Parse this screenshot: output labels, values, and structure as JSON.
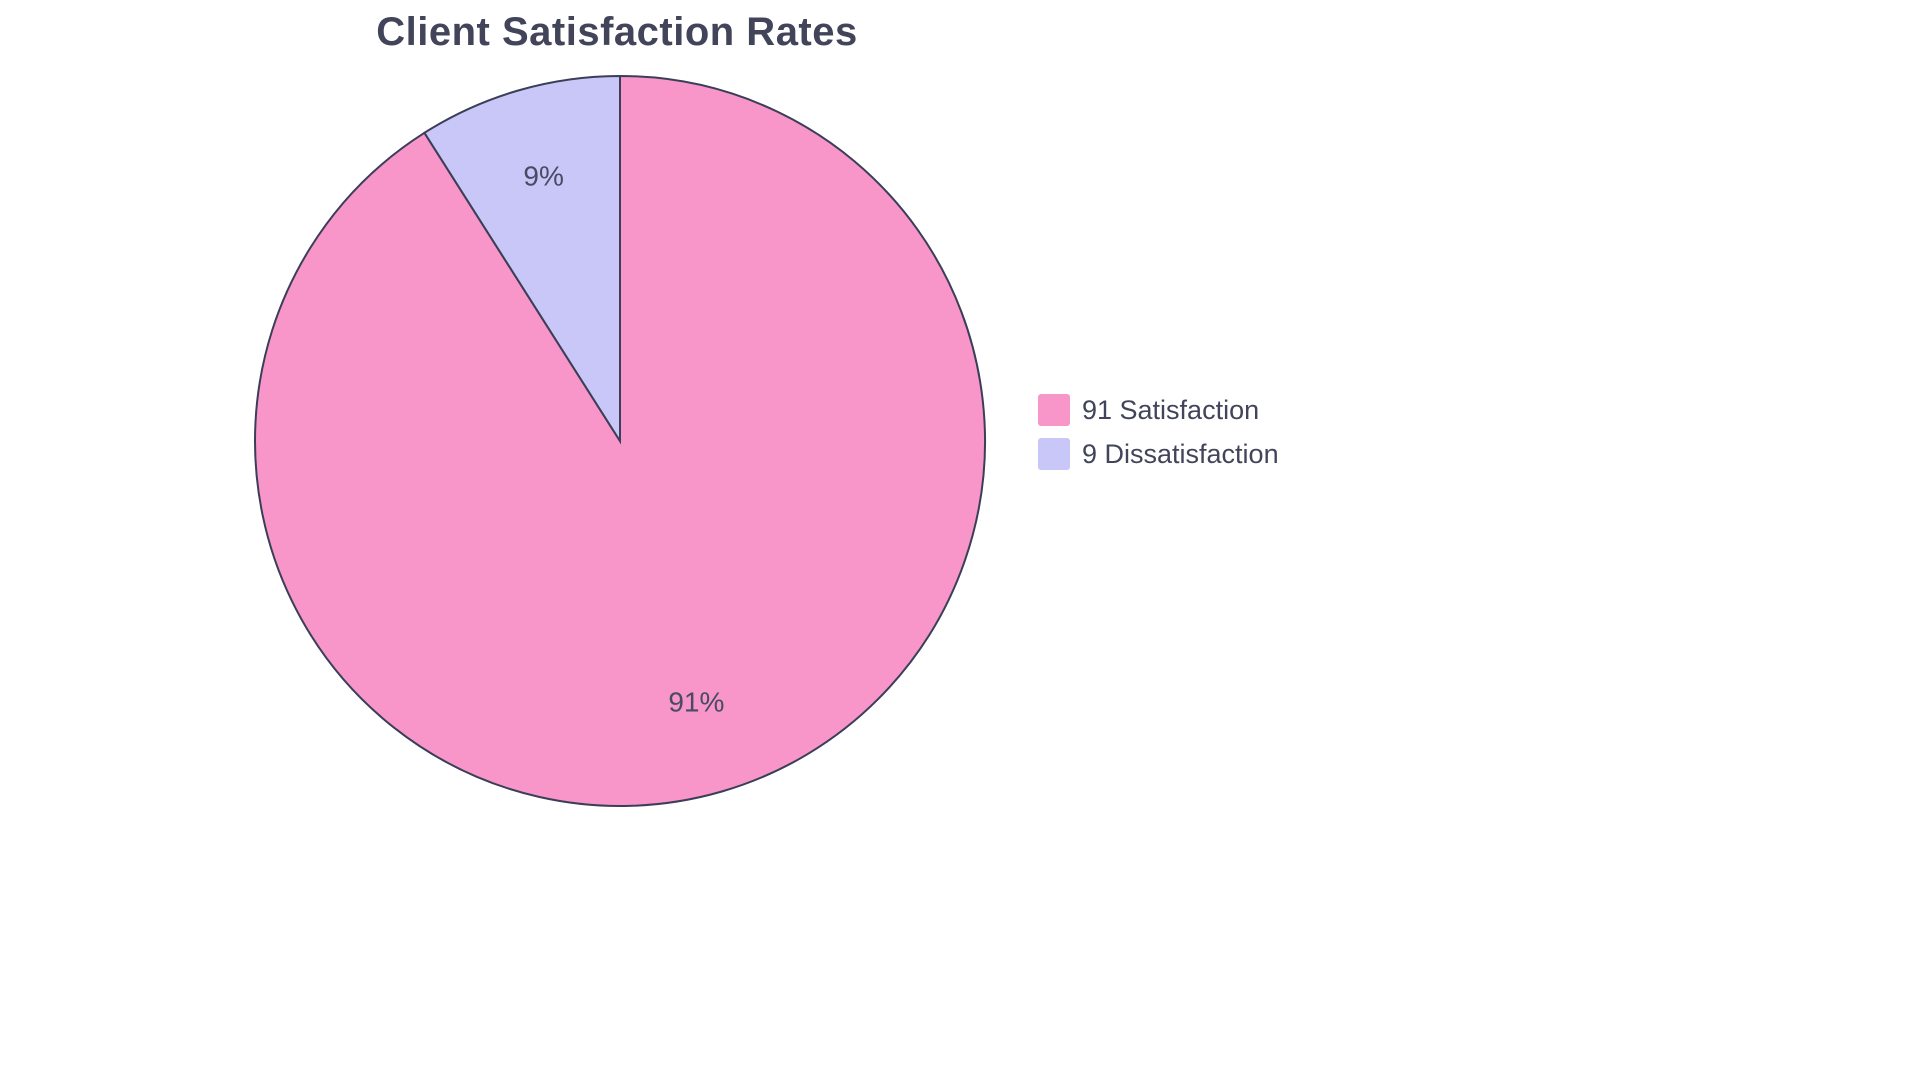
{
  "chart_data": {
    "type": "pie",
    "title": "Client Satisfaction Rates",
    "labels": [
      "91 Satisfaction",
      "9 Dissatisfaction"
    ],
    "values": [
      91,
      9
    ],
    "percent_labels": [
      "91%",
      "9%"
    ],
    "colors": [
      "#F895C9",
      "#C9C7F7"
    ],
    "slice_border_color": "#3B3E58",
    "label_color": "#474B63",
    "title_color": "#42455A",
    "legend_position": "right",
    "start_angle_deg": -90,
    "direction": "clockwise",
    "total": 100
  }
}
